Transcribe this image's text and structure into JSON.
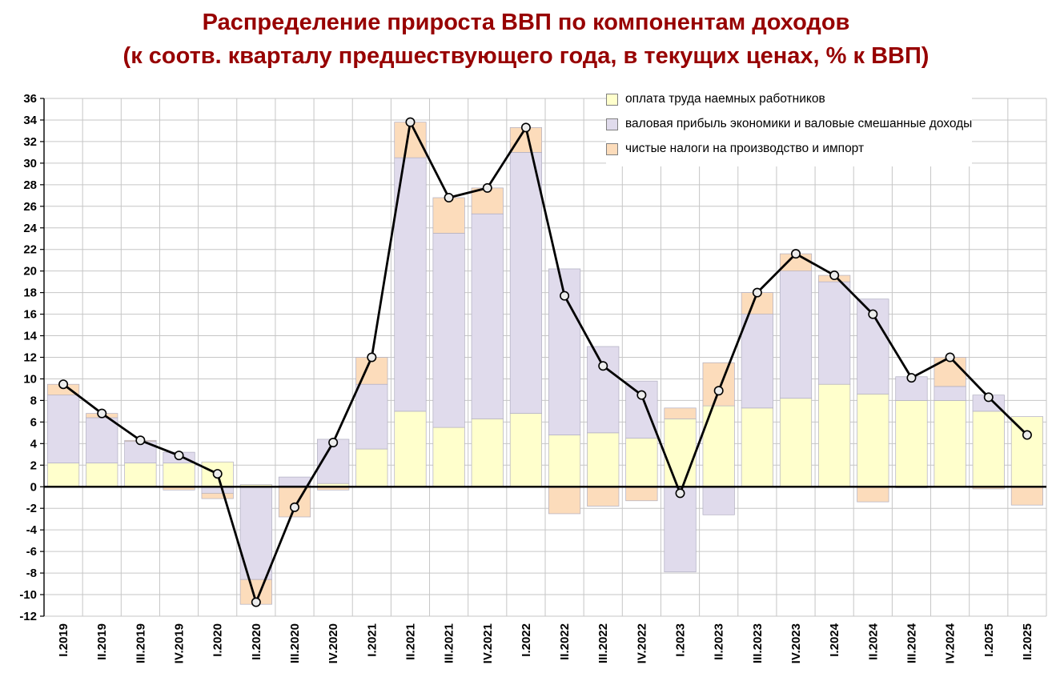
{
  "title": {
    "line1": "Распределение прироста ВВП по компонентам доходов",
    "line2": "(к соотв. кварталу предшествующего года, в текущих ценах, % к ВВП)"
  },
  "colors": {
    "title_text": "#970000",
    "grid": "#c6c6c6",
    "axis": "#000000",
    "zero_line": "#000000",
    "bar_border": "#b0aec0",
    "wages": "#ffffcc",
    "profit": "#e0dbec",
    "taxes": "#fcdcbb",
    "gdp_line": "#000000",
    "marker_fill": "#ededed"
  },
  "chart_data": {
    "type": "bar",
    "subtype": "stacked-bars-with-line-overlay",
    "title": "Распределение прироста ВВП по компонентам доходов (к соотв. кварталу предшествующего года, в текущих ценах, % к ВВП)",
    "ylim": [
      -12,
      36
    ],
    "ytick_step": 2,
    "grid": "on",
    "legend_position": "top-right-inside",
    "categories": [
      "I.2019",
      "II.2019",
      "III.2019",
      "IV.2019",
      "I.2020",
      "II.2020",
      "III.2020",
      "IV.2020",
      "I.2021",
      "II.2021",
      "III.2021",
      "IV.2021",
      "I.2022",
      "II.2022",
      "III.2022",
      "IV.2022",
      "I.2023",
      "II.2023",
      "III.2023",
      "IV.2023",
      "I.2024",
      "II.2024",
      "III.2024",
      "IV.2024",
      "I.2025",
      "II.2025"
    ],
    "series": [
      {
        "name": "оплата труда наемных работников",
        "color_key": "wages",
        "values": [
          2.2,
          2.2,
          2.2,
          2.2,
          2.3,
          0.2,
          0.1,
          0.3,
          3.5,
          7.0,
          5.5,
          6.3,
          6.8,
          4.8,
          5.0,
          4.5,
          6.3,
          7.5,
          7.3,
          8.2,
          9.5,
          8.6,
          8.0,
          8.0,
          7.0,
          6.5
        ]
      },
      {
        "name": "валовая прибыль экономики и валовые смешанные доходы",
        "color_key": "profit",
        "values": [
          6.3,
          4.2,
          2.0,
          1.0,
          -0.6,
          -8.6,
          0.8,
          4.1,
          6.0,
          23.5,
          18.0,
          19.0,
          24.2,
          15.4,
          8.0,
          5.3,
          -7.9,
          -2.6,
          8.7,
          11.8,
          9.5,
          8.8,
          2.2,
          1.3,
          1.5,
          0.0
        ]
      },
      {
        "name": "чистые налоги на производство и импорт",
        "color_key": "taxes",
        "values": [
          1.0,
          0.4,
          0.1,
          -0.3,
          -0.5,
          -2.3,
          -2.8,
          -0.3,
          2.5,
          3.3,
          3.3,
          2.4,
          2.3,
          -2.5,
          -1.8,
          -1.3,
          1.0,
          4.0,
          2.0,
          1.6,
          0.6,
          -1.4,
          -0.1,
          2.7,
          -0.2,
          -1.7
        ]
      }
    ],
    "line": {
      "values": [
        9.5,
        6.8,
        4.3,
        2.9,
        1.2,
        -10.7,
        -1.9,
        4.1,
        12.0,
        33.8,
        26.8,
        27.7,
        33.3,
        17.7,
        11.2,
        8.5,
        -0.6,
        8.9,
        18.0,
        21.6,
        19.6,
        16.0,
        10.1,
        12.0,
        8.3,
        4.8
      ]
    }
  }
}
